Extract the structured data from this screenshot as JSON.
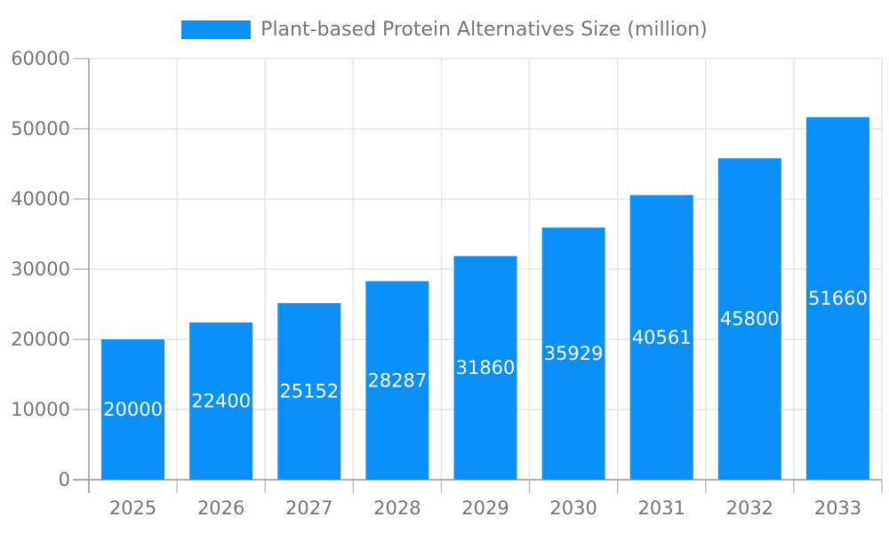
{
  "chart_data": {
    "type": "bar",
    "title": "Plant-based Protein Alternatives Size (million)",
    "categories": [
      "2025",
      "2026",
      "2027",
      "2028",
      "2029",
      "2030",
      "2031",
      "2032",
      "2033"
    ],
    "values": [
      20000,
      22400,
      25152,
      28287,
      31860,
      35929,
      40561,
      45800,
      51660
    ],
    "xlabel": "",
    "ylabel": "",
    "ylim": [
      0,
      60000
    ],
    "ytick_step": 10000,
    "ytick_labels": [
      "0",
      "10000",
      "20000",
      "30000",
      "40000",
      "50000",
      "60000"
    ],
    "grid": true,
    "legend_position": "top-center",
    "value_label_position": "inside-center",
    "colors": {
      "bar": "#0a90f8",
      "value_label_text": "#ffffff",
      "axis_line": "#999999",
      "tick_mark": "#bfbfbf",
      "grid_line": "#e6e6e6",
      "tick_text": "#757575",
      "legend_text": "#757575"
    }
  }
}
